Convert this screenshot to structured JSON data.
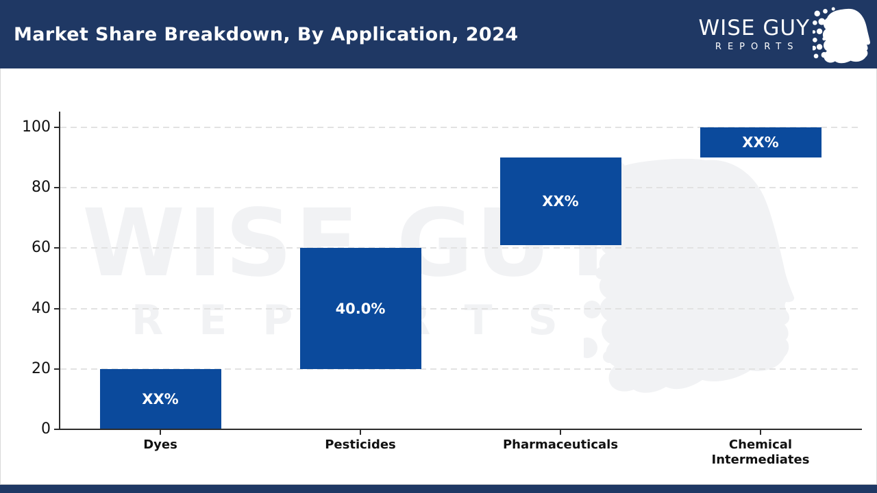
{
  "header": {
    "title": "Market Share Breakdown, By Application, 2024",
    "logo": {
      "name": "WISE GUY",
      "sub": "REPORTS"
    }
  },
  "watermark": {
    "line1": "WISE GUY",
    "line2": "REPORTS"
  },
  "colors": {
    "header_bg": "#1f3864",
    "footer_bg": "#1f3864",
    "bar": "#0b4a9c",
    "bar_label": "#ffffff",
    "gridline": "#e2e2e2",
    "axis": "#2b2b2b",
    "watermark": "#f1f2f4",
    "border": "#d9d9d9"
  },
  "chart_data": {
    "type": "bar",
    "subtype": "waterfall",
    "title": "Market Share Breakdown, By Application, 2024",
    "categories": [
      "Dyes",
      "Pesticides",
      "Pharmaceuticals",
      "Chemical Intermediates"
    ],
    "tick_labels": [
      "Dyes",
      "Pesticides",
      "Pharmaceuticals",
      "Chemical\nIntermediates"
    ],
    "segments": [
      {
        "category": "Dyes",
        "start": 0,
        "end": 20,
        "label": "XX%"
      },
      {
        "category": "Pesticides",
        "start": 20,
        "end": 60,
        "label": "40.0%"
      },
      {
        "category": "Pharmaceuticals",
        "start": 61,
        "end": 90,
        "label": "XX%"
      },
      {
        "category": "Chemical Intermediates",
        "start": 90,
        "end": 100,
        "label": "XX%"
      }
    ],
    "xlabel": "",
    "ylabel": "",
    "ylim": [
      0,
      100
    ],
    "yticks": [
      0,
      20,
      40,
      60,
      80,
      100
    ],
    "grid": "horizontal-dashed",
    "legend": "none"
  }
}
